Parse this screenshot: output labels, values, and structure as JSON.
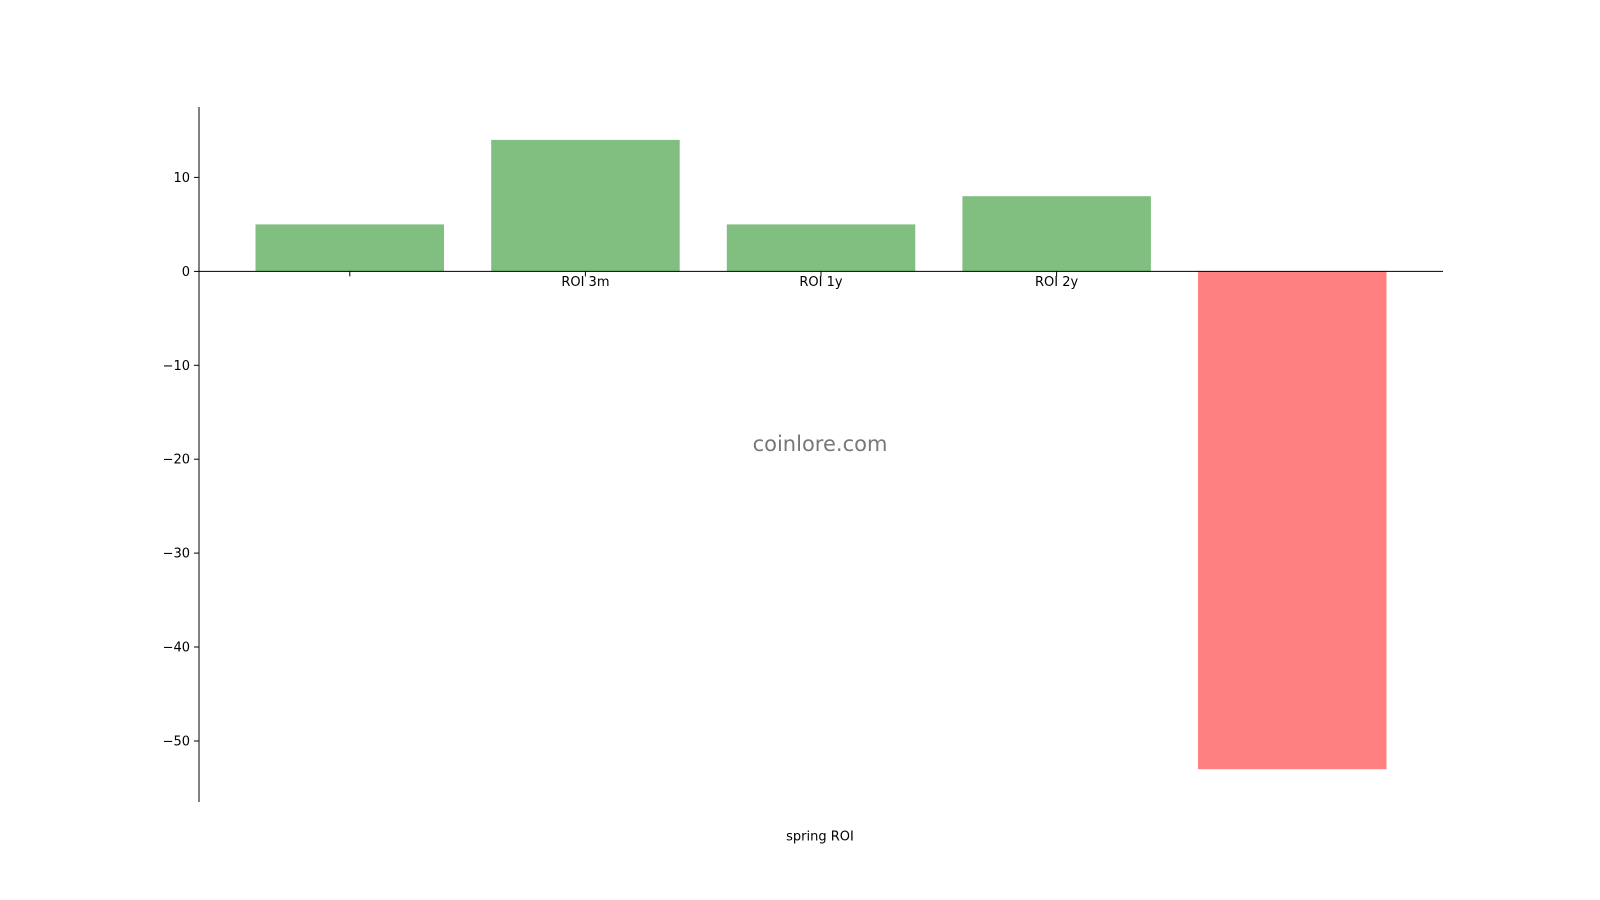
{
  "chart_data": {
    "type": "bar",
    "title": "",
    "xlabel": "spring ROI",
    "ylabel": "",
    "watermark": "coinlore.com",
    "categories": [
      "",
      "ROI 3m",
      "ROI 1y",
      "ROI 2y",
      ""
    ],
    "values": [
      5,
      14,
      5,
      8,
      -53
    ],
    "xticks": [
      {
        "index": 0,
        "label": ""
      },
      {
        "index": 1,
        "label": "ROI 3m"
      },
      {
        "index": 2,
        "label": "ROI 1y"
      },
      {
        "index": 3,
        "label": "ROI 2y"
      }
    ],
    "yticks": [
      10,
      0,
      -10,
      -20,
      -30,
      -40,
      -50
    ],
    "ylim": [
      -56.5,
      17.5
    ],
    "bar_width_fraction": 0.8,
    "grid": false,
    "legend": "none",
    "colors": {
      "positive_bar": "#80bf80",
      "negative_bar": "#ff8080",
      "axis": "#000000",
      "tick_label": "#000000",
      "watermark_text": "#787878"
    }
  }
}
